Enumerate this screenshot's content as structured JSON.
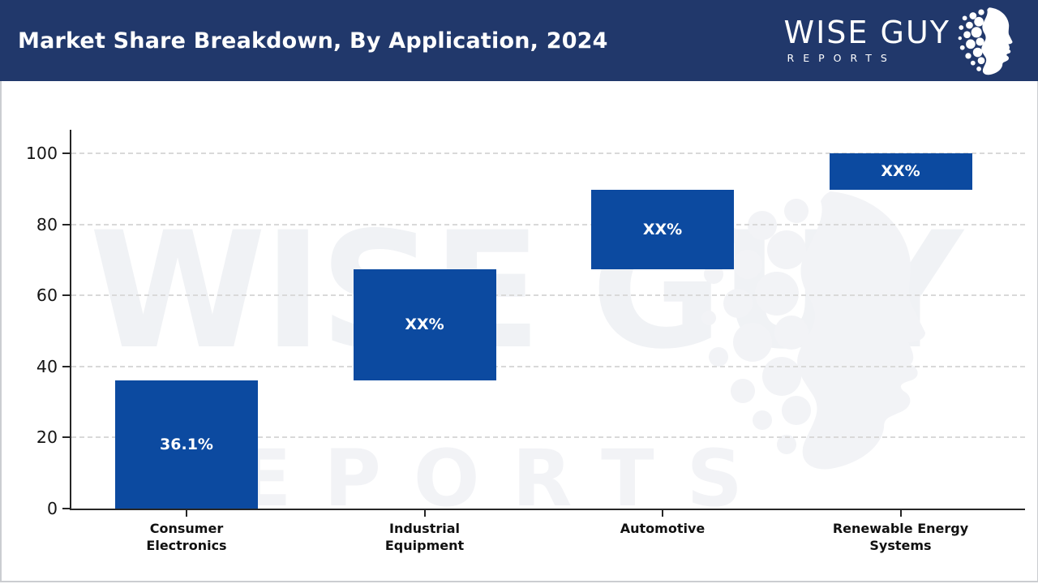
{
  "colors": {
    "header_bg": "#21386b",
    "accent_blue": "#0c4aa0",
    "frame_border": "#cbcdd1",
    "watermark": "#f1f2f5"
  },
  "header": {
    "title": "Market Share Breakdown, By Application, 2024",
    "logo": {
      "wordmark": "WISE GUY",
      "subtitle": "REPORTS"
    }
  },
  "watermark": {
    "line1": "WISE GUY",
    "line2": "REPORTS"
  },
  "chart_data": {
    "type": "bar",
    "subtype": "floating-waterfall",
    "title": "Market Share Breakdown, By Application, 2024",
    "categories": [
      {
        "label": "Consumer Electronics",
        "lines": [
          "Consumer",
          "Electronics"
        ]
      },
      {
        "label": "Industrial Equipment",
        "lines": [
          "Industrial",
          "Equipment"
        ]
      },
      {
        "label": "Automotive",
        "lines": [
          "Automotive"
        ]
      },
      {
        "label": "Renewable Energy Systems",
        "lines": [
          "Renewable Energy",
          "Systems"
        ]
      }
    ],
    "segments": [
      {
        "category": "Consumer Electronics",
        "start": 0,
        "end": 36.1,
        "label": "36.1%"
      },
      {
        "category": "Industrial Equipment",
        "start": 36.1,
        "end": 67.3,
        "label": "XX%"
      },
      {
        "category": "Automotive",
        "start": 67.3,
        "end": 89.8,
        "label": "XX%"
      },
      {
        "category": "Renewable Energy Systems",
        "start": 89.8,
        "end": 100,
        "label": "XX%"
      }
    ],
    "ylim": [
      0,
      100
    ],
    "yticks": [
      0,
      20,
      40,
      60,
      80,
      100
    ],
    "grid": "dashed-horizontal",
    "legend": "none",
    "bar_color": "#0c4aa0",
    "value_label_color": "#ffffff"
  }
}
